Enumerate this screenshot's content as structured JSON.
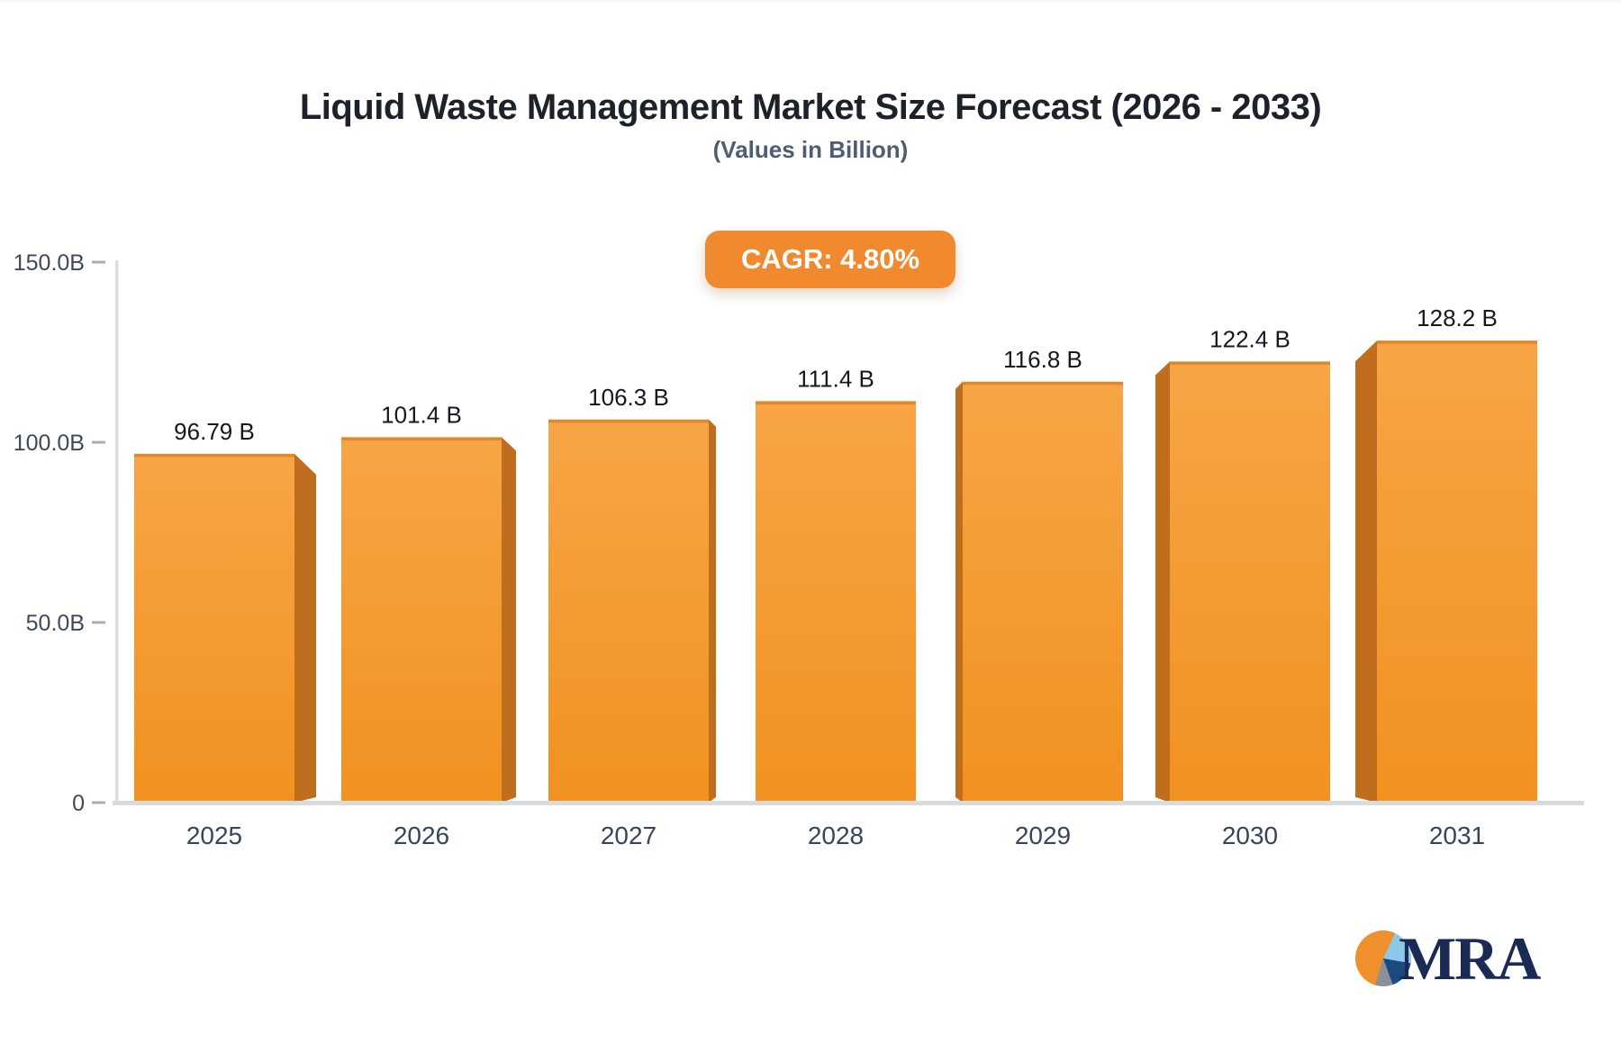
{
  "header": {
    "title": "Liquid Waste Management Market Size Forecast (2026 - 2033)",
    "subtitle": "(Values in Billion)",
    "cagr_badge": "CAGR: 4.80%"
  },
  "chart_data": {
    "type": "bar",
    "title": "Liquid Waste Management Market Size Forecast (2026 - 2033)",
    "subtitle": "(Values in Billion)",
    "categories": [
      "2025",
      "2026",
      "2027",
      "2028",
      "2029",
      "2030",
      "2031"
    ],
    "values": [
      96.79,
      101.4,
      106.3,
      111.4,
      116.8,
      122.4,
      128.2
    ],
    "value_labels": [
      "96.79 B",
      "101.4 B",
      "106.3 B",
      "111.4 B",
      "116.8 B",
      "122.4 B",
      "128.2 B"
    ],
    "y_ticks": [
      {
        "label": "150.0B",
        "value": 150
      },
      {
        "label": "100.0B",
        "value": 100
      },
      {
        "label": "50.0B",
        "value": 50
      },
      {
        "label": "0",
        "value": 0
      }
    ],
    "ylim": [
      0,
      150
    ],
    "annotation": "CAGR: 4.80%",
    "grid": false,
    "legend": "none",
    "style_3d": true
  },
  "colors": {
    "bar_face_top": "#f7a546",
    "bar_face_bottom": "#f19120",
    "bar_side": "#bf6e1d",
    "bar_top_edge": "#e0862b",
    "axis_line": "#dcdee1",
    "baseline": "#d8dadc",
    "tick_mark": "#a9b0ba",
    "y_label": "#3e4a5a",
    "x_label": "#39445a",
    "value_label": "#14181f",
    "badge_bg": "#f1892f",
    "title": "#1d2129",
    "subtitle": "#4f5d74"
  },
  "logo": {
    "text": "MRA",
    "icon": "pie-chart-icon"
  }
}
